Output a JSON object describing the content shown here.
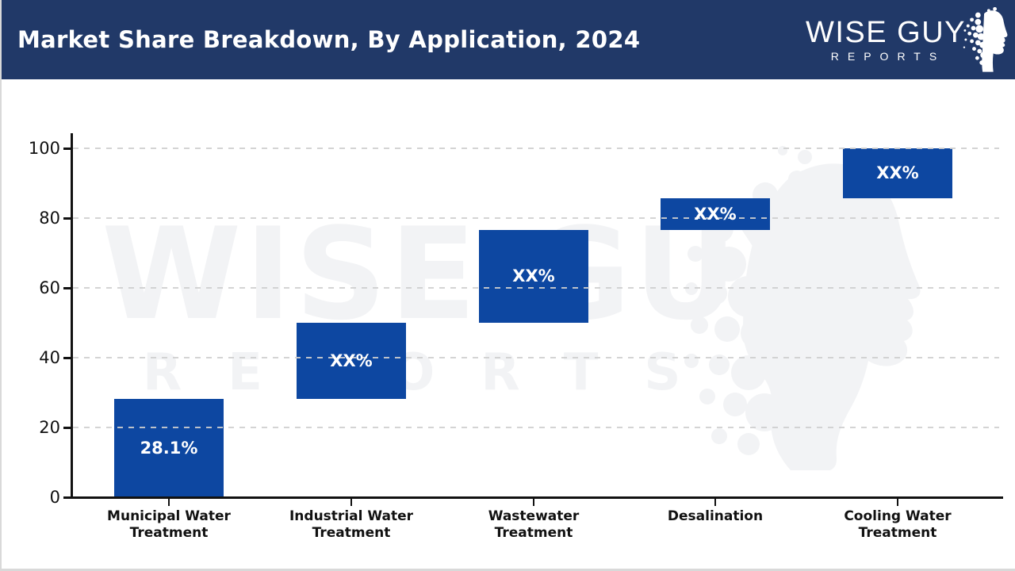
{
  "header": {
    "title": "Market Share Breakdown, By Application, 2024",
    "logo": {
      "name": "WISE GUY",
      "tagline": "REPORTS"
    }
  },
  "watermark": {
    "text": "WISE GUY",
    "subtext": "REPORTS"
  },
  "colors": {
    "header_bg": "#213968",
    "bar_fill": "#0d47a1",
    "bar_label_text": "#ffffff",
    "axis": "#111111",
    "grid": "#cfcfcf",
    "watermark": "#f2f3f5"
  },
  "chart_data": {
    "type": "bar",
    "subtype": "waterfall",
    "title": "Market Share Breakdown, By Application, 2024",
    "categories": [
      "Municipal Water Treatment",
      "Industrial Water Treatment",
      "Wastewater Treatment",
      "Desalination",
      "Cooling Water Treatment"
    ],
    "segments": [
      {
        "category_lines": [
          "Municipal Water",
          "Treatment"
        ],
        "base": 0,
        "top": 28.1,
        "label": "28.1%"
      },
      {
        "category_lines": [
          "Industrial Water",
          "Treatment"
        ],
        "base": 28.1,
        "top": 50.0,
        "label": "XX%"
      },
      {
        "category_lines": [
          "Wastewater",
          "Treatment"
        ],
        "base": 50.0,
        "top": 76.6,
        "label": "XX%"
      },
      {
        "category_lines": [
          "Desalination"
        ],
        "base": 76.6,
        "top": 85.7,
        "label": "XX%"
      },
      {
        "category_lines": [
          "Cooling Water",
          "Treatment"
        ],
        "base": 85.7,
        "top": 100.0,
        "label": "XX%"
      }
    ],
    "ylim": [
      0,
      100
    ],
    "yticks": [
      0,
      20,
      40,
      60,
      80,
      100
    ],
    "xlabel": "",
    "ylabel": "",
    "grid": "horizontal-dashed",
    "legend": "none"
  }
}
